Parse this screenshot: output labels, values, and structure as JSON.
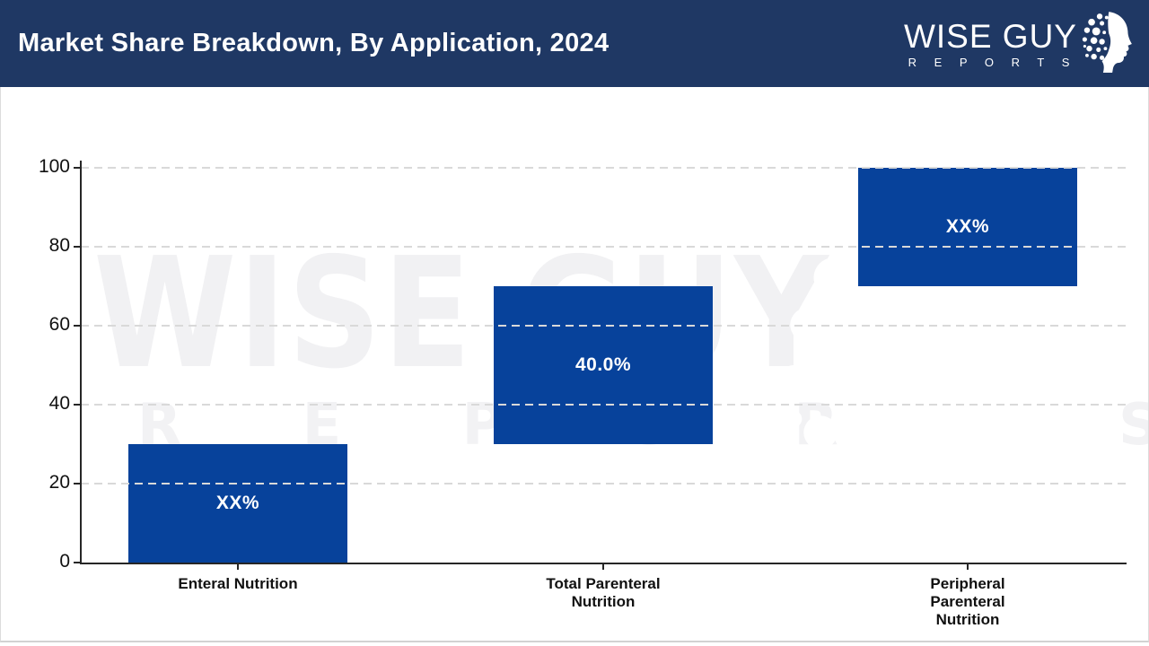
{
  "header": {
    "title": "Market Share Breakdown, By Application, 2024",
    "logo_line1": "WISE GUY",
    "logo_line2": "R E P O R T S"
  },
  "watermark": {
    "line1": "WISE GUY",
    "line2": "R E P O R T S"
  },
  "colors": {
    "header_bg": "#1f3864",
    "bar_fill": "#07429b",
    "bar_label_text": "#ffffff",
    "gridline": "#d9d9d9",
    "axis": "#262626",
    "watermark_gray": "#f1f1f3"
  },
  "chart_data": {
    "type": "bar",
    "subtype": "floating-segment-waterfall",
    "title": "Market Share Breakdown, By Application, 2024",
    "categories": [
      "Enteral Nutrition",
      "Total Parenteral Nutrition",
      "Peripheral Parenteral Nutrition"
    ],
    "category_label_lines": [
      [
        "Enteral Nutrition"
      ],
      [
        "Total Parenteral",
        "Nutrition"
      ],
      [
        "Peripheral",
        "Parenteral",
        "Nutrition"
      ]
    ],
    "segments": [
      {
        "category": "Enteral Nutrition",
        "from": 0,
        "to": 30,
        "label": "XX%"
      },
      {
        "category": "Total Parenteral Nutrition",
        "from": 30,
        "to": 70,
        "label": "40.0%"
      },
      {
        "category": "Peripheral Parenteral Nutrition",
        "from": 70,
        "to": 100,
        "label": "XX%"
      }
    ],
    "xlabel": "",
    "ylabel": "",
    "ylim": [
      0,
      100
    ],
    "yticks": [
      0,
      20,
      40,
      60,
      80,
      100
    ],
    "grid": "horizontal dashed",
    "legend": "none"
  }
}
